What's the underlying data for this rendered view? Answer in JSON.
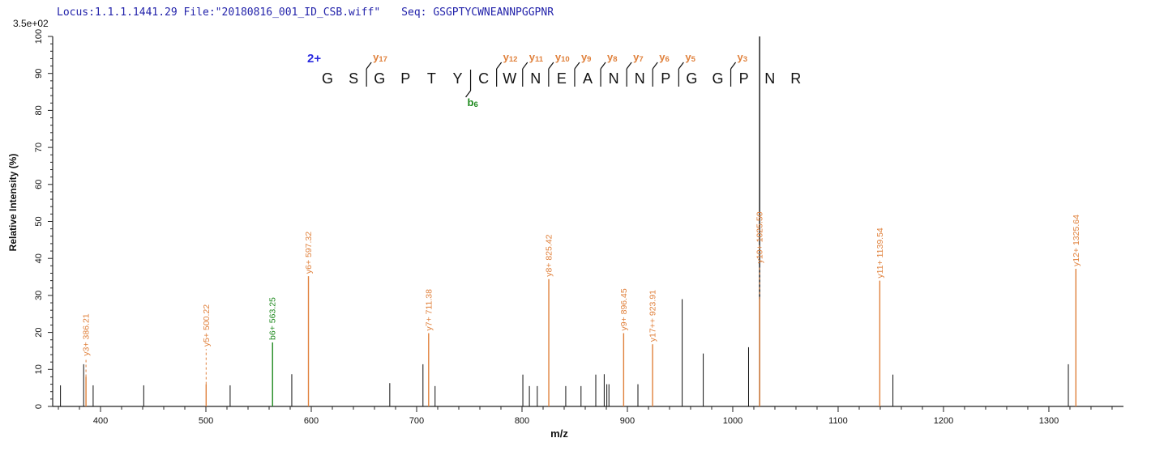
{
  "header": {
    "locus_file": "Locus:1.1.1.1441.29 File:\"20180816_001_ID_CSB.wiff\"",
    "seq_label": "Seq: ",
    "seq_value": "GSGPTYCWNEANNPGGPNR",
    "max_intensity": "3.5e+02"
  },
  "colors": {
    "y_ion_orange": "#e0813c",
    "b_ion_green": "#1f8a1f",
    "header_blue": "#2222aa",
    "charge_blue": "#2a2ae0",
    "peak_black": "#111111",
    "axis": "#222222"
  },
  "chart_data": {
    "type": "bar",
    "subtype": "ms2_stick_spectrum",
    "title": "",
    "xlabel": "m/z",
    "ylabel": "Relative  Intensity (%)",
    "xlim": [
      354.6,
      1370.8
    ],
    "ylim": [
      0,
      100
    ],
    "x_major_ticks": [
      400,
      500,
      600,
      700,
      800,
      900,
      1000,
      1100,
      1200,
      1300
    ],
    "x_minor_step": 20,
    "y_major_ticks": [
      0,
      10,
      20,
      30,
      40,
      50,
      60,
      70,
      80,
      90,
      100
    ],
    "y_minor_step": 2,
    "grid": false,
    "precursor_charge_label": "2+",
    "peptide": "GSGPTYCWNEANNPGGPNR",
    "fragment_markers": [
      {
        "series": "y",
        "num": "17",
        "after_residue": 2
      },
      {
        "series": "y",
        "num": "12",
        "after_residue": 7
      },
      {
        "series": "y",
        "num": "11",
        "after_residue": 8
      },
      {
        "series": "y",
        "num": "10",
        "after_residue": 9
      },
      {
        "series": "y",
        "num": "9",
        "after_residue": 10
      },
      {
        "series": "y",
        "num": "8",
        "after_residue": 11
      },
      {
        "series": "y",
        "num": "7",
        "after_residue": 12
      },
      {
        "series": "y",
        "num": "6",
        "after_residue": 13
      },
      {
        "series": "y",
        "num": "5",
        "after_residue": 14
      },
      {
        "series": "y",
        "num": "3",
        "after_residue": 16
      },
      {
        "series": "b",
        "num": "6",
        "after_residue": 6
      }
    ],
    "annotated_peaks": [
      {
        "label": "y3+ 386.21",
        "series": "y",
        "mz": 386.21,
        "intensity": 8.0,
        "leader_to": 13.0
      },
      {
        "label": "y5+ 500.22",
        "series": "y",
        "mz": 500.22,
        "intensity": 6.0,
        "leader_to": 15.5
      },
      {
        "label": "b6+ 563.25",
        "series": "b",
        "mz": 563.25,
        "intensity": 17.3,
        "leader_to": null
      },
      {
        "label": "y6+ 597.32",
        "series": "y",
        "mz": 597.32,
        "intensity": 35.2,
        "leader_to": null
      },
      {
        "label": "y7+ 711.38",
        "series": "y",
        "mz": 711.38,
        "intensity": 19.8,
        "leader_to": null
      },
      {
        "label": "y8+ 825.42",
        "series": "y",
        "mz": 825.42,
        "intensity": 34.4,
        "leader_to": null
      },
      {
        "label": "y9+ 896.45",
        "series": "y",
        "mz": 896.45,
        "intensity": 19.8,
        "leader_to": null
      },
      {
        "label": "y17++ 923.91",
        "series": "y",
        "mz": 923.91,
        "intensity": 16.8,
        "leader_to": null
      },
      {
        "label": "y10+ 1025.50",
        "series": "y",
        "mz": 1025.5,
        "intensity": 29.0,
        "leader_to": 38.0
      },
      {
        "label": "y11+ 1139.54",
        "series": "y",
        "mz": 1139.54,
        "intensity": 34.0,
        "leader_to": null
      },
      {
        "label": "y12+ 1325.64",
        "series": "y",
        "mz": 1325.64,
        "intensity": 37.2,
        "leader_to": null
      }
    ],
    "unannotated_peaks": [
      {
        "mz": 362.0,
        "intensity": 5.7
      },
      {
        "mz": 384.0,
        "intensity": 11.4
      },
      {
        "mz": 393.0,
        "intensity": 5.7
      },
      {
        "mz": 441.0,
        "intensity": 5.7
      },
      {
        "mz": 523.0,
        "intensity": 5.7
      },
      {
        "mz": 581.5,
        "intensity": 8.7
      },
      {
        "mz": 674.5,
        "intensity": 6.3
      },
      {
        "mz": 706.0,
        "intensity": 11.4
      },
      {
        "mz": 717.5,
        "intensity": 5.5
      },
      {
        "mz": 800.8,
        "intensity": 8.6
      },
      {
        "mz": 807.0,
        "intensity": 5.5
      },
      {
        "mz": 814.5,
        "intensity": 5.5
      },
      {
        "mz": 841.5,
        "intensity": 5.5
      },
      {
        "mz": 856.0,
        "intensity": 5.5
      },
      {
        "mz": 870.0,
        "intensity": 8.6
      },
      {
        "mz": 878.0,
        "intensity": 8.7
      },
      {
        "mz": 880.5,
        "intensity": 6.0
      },
      {
        "mz": 882.5,
        "intensity": 6.0
      },
      {
        "mz": 910.0,
        "intensity": 6.0
      },
      {
        "mz": 952.0,
        "intensity": 29.0
      },
      {
        "mz": 972.0,
        "intensity": 14.3
      },
      {
        "mz": 1015.0,
        "intensity": 16.0
      },
      {
        "mz": 1025.5,
        "intensity": 100.0
      },
      {
        "mz": 1152.0,
        "intensity": 8.6
      },
      {
        "mz": 1318.5,
        "intensity": 11.4
      }
    ]
  }
}
